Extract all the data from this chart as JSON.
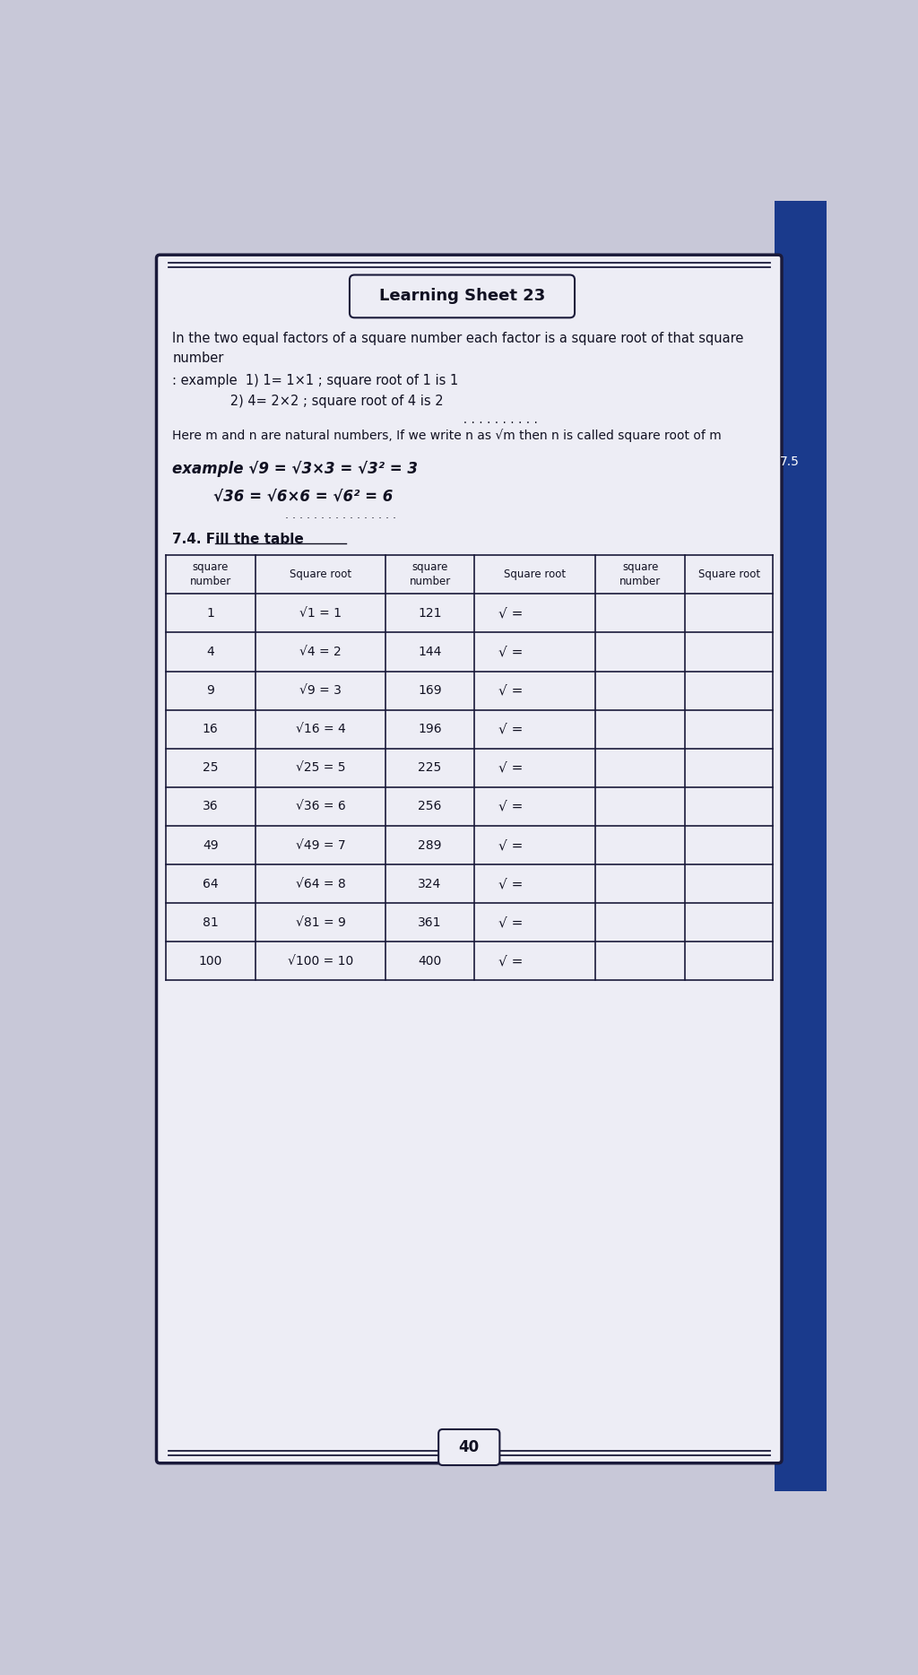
{
  "title": "Learning Sheet 23",
  "page_number": "40",
  "bg_color": "#c8c8d8",
  "paper_color": "#ededf5",
  "intro_text1": "In the two equal factors of a square number each factor is a square root of that square",
  "intro_text2": "number",
  "example_line1": ": example  1) 1= 1×1 ; square root of 1 is 1",
  "example_line2": "              2) 4= 2×2 ; square root of 4 is 2",
  "dots_line": "          . . . . . . . . . .",
  "here_text": "Here m and n are natural numbers, If we write n as √m then n is called square root of m",
  "example_math1": "example √9 = √3×3 = √3² = 3",
  "example_math2": "        √36 = √6×6 = √6² = 6",
  "dots_line2": ". . . . . . . . . . . . . . . .",
  "fill_table_label": "7.4. Fill the table",
  "col_headers": [
    "square\nnumber",
    "Square root",
    "square\nnumber",
    "Square root",
    "square\nnumber",
    "Square root"
  ],
  "table_data_col1": [
    1,
    4,
    9,
    16,
    25,
    36,
    49,
    64,
    81,
    100
  ],
  "table_data_sqrt1": [
    "√1 = 1",
    "√4 = 2",
    "√9 = 3",
    "√16 = 4",
    "√25 = 5",
    "√36 = 6",
    "√49 = 7",
    "√64 = 8",
    "√81 = 9",
    "√100 = 10"
  ],
  "table_data_col2": [
    121,
    144,
    169,
    196,
    225,
    256,
    289,
    324,
    361,
    400
  ],
  "border_color": "#1a1a3a",
  "text_color": "#111122",
  "blue_color": "#1a3a8c",
  "margin_text": "7.5"
}
